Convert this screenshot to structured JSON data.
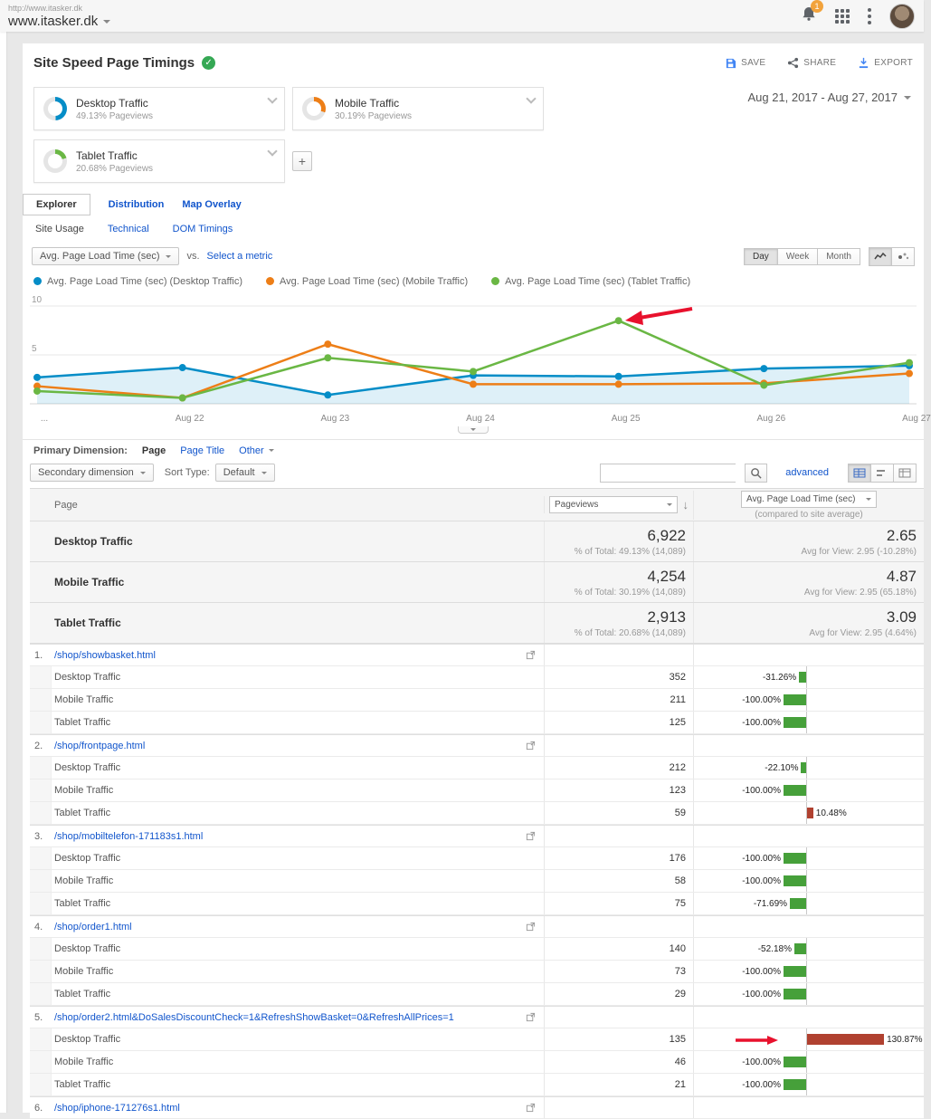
{
  "topbar": {
    "url": "http://www.itasker.dk",
    "account": "www.itasker.dk",
    "notification_count": "1"
  },
  "header": {
    "title": "Site Speed Page Timings",
    "save": "SAVE",
    "share": "SHARE",
    "export": "EXPORT"
  },
  "date_range": "Aug 21, 2017 - Aug 27, 2017",
  "segments": [
    {
      "name": "Desktop Traffic",
      "detail": "49.13% Pageviews",
      "pct": 49.13,
      "color": "#058dc7"
    },
    {
      "name": "Mobile Traffic",
      "detail": "30.19% Pageviews",
      "pct": 30.19,
      "color": "#ed7e17"
    },
    {
      "name": "Tablet Traffic",
      "detail": "20.68% Pageviews",
      "pct": 20.68,
      "color": "#6ab744"
    }
  ],
  "add_segment_label": "+",
  "tabs": {
    "explorer": "Explorer",
    "distribution": "Distribution",
    "map_overlay": "Map Overlay"
  },
  "subtabs": {
    "site_usage": "Site Usage",
    "technical": "Technical",
    "dom_timings": "DOM Timings"
  },
  "metric_bar": {
    "metric_selector": "Avg. Page Load Time (sec)",
    "vs_label": "vs.",
    "select_metric": "Select a metric",
    "granularity": [
      "Day",
      "Week",
      "Month"
    ],
    "active_granularity": "Day"
  },
  "legend": [
    {
      "label": "Avg. Page Load Time (sec) (Desktop Traffic)",
      "color": "#058dc7"
    },
    {
      "label": "Avg. Page Load Time (sec) (Mobile Traffic)",
      "color": "#ed7e17"
    },
    {
      "label": "Avg. Page Load Time (sec) (Tablet Traffic)",
      "color": "#6ab744"
    }
  ],
  "chart_data": {
    "type": "line",
    "x": [
      "...",
      "Aug 22",
      "Aug 23",
      "Aug 24",
      "Aug 25",
      "Aug 26",
      "Aug 27"
    ],
    "series": [
      {
        "name": "Avg. Page Load Time (sec) (Desktop Traffic)",
        "color": "#058dc7",
        "area": true,
        "values": [
          2.7,
          3.7,
          0.9,
          2.9,
          2.8,
          3.6,
          3.9
        ]
      },
      {
        "name": "Avg. Page Load Time (sec) (Mobile Traffic)",
        "color": "#ed7e17",
        "values": [
          1.8,
          0.6,
          6.1,
          2.0,
          2.0,
          2.1,
          3.1
        ]
      },
      {
        "name": "Avg. Page Load Time (sec) (Tablet Traffic)",
        "color": "#6ab744",
        "values": [
          1.3,
          0.6,
          4.7,
          3.3,
          8.5,
          1.9,
          4.2
        ]
      }
    ],
    "ylim": [
      0,
      10
    ],
    "yticks": [
      5,
      10
    ],
    "grid": true,
    "legend_position": "top",
    "annotation": "red arrow pointing at Tablet Traffic peak on Aug 25"
  },
  "dimension_bar": {
    "label": "Primary Dimension:",
    "options": [
      "Page",
      "Page Title",
      "Other"
    ],
    "active": "Page"
  },
  "toolbar": {
    "secondary_dimension": "Secondary dimension",
    "sort_type_label": "Sort Type:",
    "sort_type_value": "Default",
    "search_value": "",
    "advanced": "advanced"
  },
  "table": {
    "col_page": "Page",
    "col_pageviews": "Pageviews",
    "col_metric": "Avg. Page Load Time (sec)",
    "col_metric_sub": "(compared to site average)",
    "summary": [
      {
        "name": "Desktop Traffic",
        "pageviews": "6,922",
        "pageviews_sub": "% of Total: 49.13% (14,089)",
        "metric": "2.65",
        "metric_sub": "Avg for View: 2.95 (-10.28%)"
      },
      {
        "name": "Mobile Traffic",
        "pageviews": "4,254",
        "pageviews_sub": "% of Total: 30.19% (14,089)",
        "metric": "4.87",
        "metric_sub": "Avg for View: 2.95 (65.18%)"
      },
      {
        "name": "Tablet Traffic",
        "pageviews": "2,913",
        "pageviews_sub": "% of Total: 20.68% (14,089)",
        "metric": "3.09",
        "metric_sub": "Avg for View: 2.95 (4.64%)"
      }
    ],
    "rows": [
      {
        "index": "1.",
        "page": "/shop/showbasket.html",
        "segments": [
          {
            "name": "Desktop Traffic",
            "pageviews": "352",
            "delta_label": "-31.26%",
            "delta": -31.26
          },
          {
            "name": "Mobile Traffic",
            "pageviews": "211",
            "delta_label": "-100.00%",
            "delta": -100
          },
          {
            "name": "Tablet Traffic",
            "pageviews": "125",
            "delta_label": "-100.00%",
            "delta": -100
          }
        ]
      },
      {
        "index": "2.",
        "page": "/shop/frontpage.html",
        "segments": [
          {
            "name": "Desktop Traffic",
            "pageviews": "212",
            "delta_label": "-22.10%",
            "delta": -22.1
          },
          {
            "name": "Mobile Traffic",
            "pageviews": "123",
            "delta_label": "-100.00%",
            "delta": -100
          },
          {
            "name": "Tablet Traffic",
            "pageviews": "59",
            "delta_label": "10.48%",
            "delta": 10.48
          }
        ]
      },
      {
        "index": "3.",
        "page": "/shop/mobiltelefon-171183s1.html",
        "segments": [
          {
            "name": "Desktop Traffic",
            "pageviews": "176",
            "delta_label": "-100.00%",
            "delta": -100
          },
          {
            "name": "Mobile Traffic",
            "pageviews": "58",
            "delta_label": "-100.00%",
            "delta": -100
          },
          {
            "name": "Tablet Traffic",
            "pageviews": "75",
            "delta_label": "-71.69%",
            "delta": -71.69
          }
        ]
      },
      {
        "index": "4.",
        "page": "/shop/order1.html",
        "segments": [
          {
            "name": "Desktop Traffic",
            "pageviews": "140",
            "delta_label": "-52.18%",
            "delta": -52.18
          },
          {
            "name": "Mobile Traffic",
            "pageviews": "73",
            "delta_label": "-100.00%",
            "delta": -100
          },
          {
            "name": "Tablet Traffic",
            "pageviews": "29",
            "delta_label": "-100.00%",
            "delta": -100
          }
        ]
      },
      {
        "index": "5.",
        "page": "/shop/order2.html&DoSalesDiscountCheck=1&RefreshShowBasket=0&RefreshAllPrices=1",
        "segments": [
          {
            "name": "Desktop Traffic",
            "pageviews": "135",
            "delta_label": "130.87%",
            "delta": 130.87,
            "annotated": true
          },
          {
            "name": "Mobile Traffic",
            "pageviews": "46",
            "delta_label": "-100.00%",
            "delta": -100
          },
          {
            "name": "Tablet Traffic",
            "pageviews": "21",
            "delta_label": "-100.00%",
            "delta": -100
          }
        ]
      },
      {
        "index": "6.",
        "page": "/shop/iphone-171276s1.html",
        "segments": []
      }
    ]
  },
  "colors": {
    "link": "#1155cc",
    "positive_bar": "#b04130",
    "negative_bar": "#46a03a",
    "annotation_arrow": "#e8112d"
  }
}
